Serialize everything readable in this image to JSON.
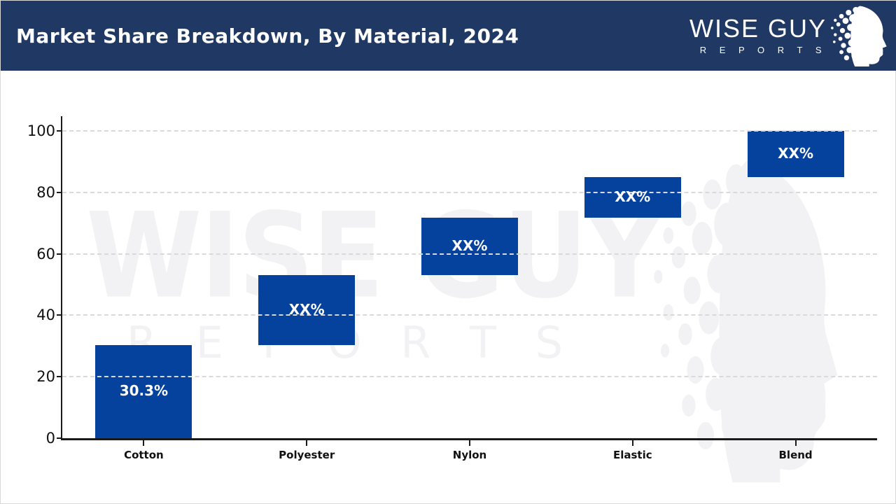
{
  "header": {
    "title": "Market Share Breakdown, By Material, 2024",
    "bg_color": "#1f3864",
    "logo_line1": "WISE GUY",
    "logo_line2": "R E P O R T S"
  },
  "watermark": {
    "line1": "WISE GUY",
    "line2": "R E P O R T S"
  },
  "chart_data": {
    "type": "bar",
    "subtype": "waterfall-floating-segments",
    "title": "Market Share Breakdown, By Material, 2024",
    "categories": [
      "Cotton",
      "Polyester",
      "Nylon",
      "Elastic",
      "Blend"
    ],
    "series": [
      {
        "name": "Market Share %",
        "segments": [
          {
            "category": "Cotton",
            "start": 0,
            "end": 30.3,
            "label": "30.3%"
          },
          {
            "category": "Polyester",
            "start": 30.3,
            "end": 53.0,
            "label": "XX%"
          },
          {
            "category": "Nylon",
            "start": 53.0,
            "end": 71.7,
            "label": "XX%"
          },
          {
            "category": "Elastic",
            "start": 71.7,
            "end": 85.0,
            "label": "XX%"
          },
          {
            "category": "Blend",
            "start": 85.0,
            "end": 100,
            "label": "XX%"
          }
        ]
      }
    ],
    "xlabel": "",
    "ylabel": "",
    "ylim": [
      0,
      100
    ],
    "yticks": [
      0,
      20,
      40,
      60,
      80,
      100
    ],
    "grid": "horizontal-dashed",
    "legend": "none",
    "bar_color": "#05429d",
    "bar_label_color": "#ffffff",
    "axis_color": "#1a1a1a",
    "grid_color": "#d9d9d9",
    "background_color": "#ffffff"
  }
}
